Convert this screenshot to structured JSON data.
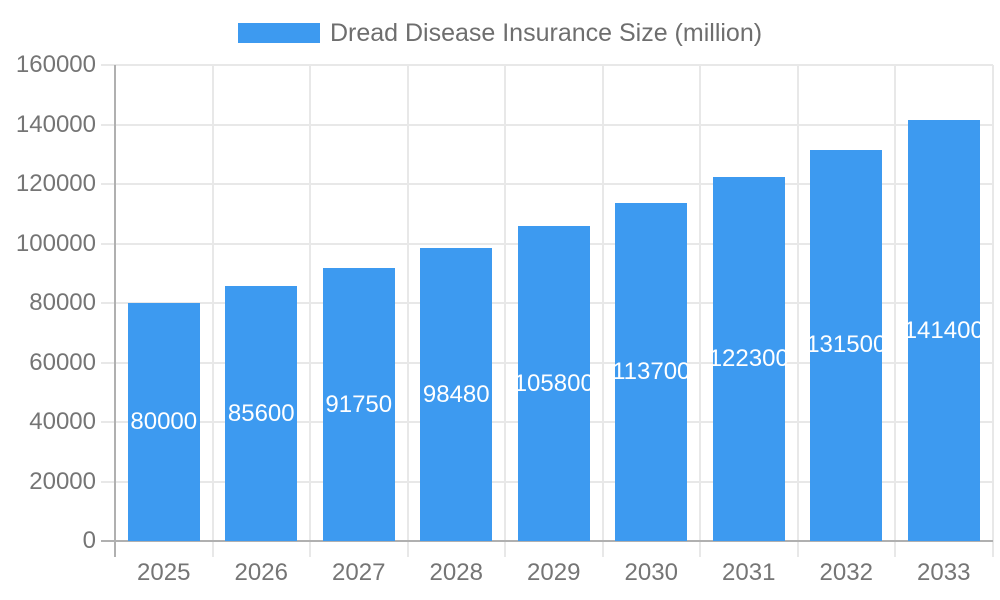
{
  "legend": {
    "label": "Dread Disease Insurance Size (million)"
  },
  "chart_data": {
    "type": "bar",
    "title": "Dread Disease Insurance Size (million)",
    "xlabel": "",
    "ylabel": "",
    "categories": [
      "2025",
      "2026",
      "2027",
      "2028",
      "2029",
      "2030",
      "2031",
      "2032",
      "2033"
    ],
    "series": [
      {
        "name": "Dread Disease Insurance Size (million)",
        "values": [
          80000,
          85600,
          91750,
          98480,
          105800,
          113700,
          122300,
          131500,
          141400
        ]
      }
    ],
    "bar_labels": [
      "80000",
      "85600",
      "91750",
      "98480",
      "105800",
      "113700",
      "122300",
      "131500",
      "141400"
    ],
    "ylim": [
      0,
      160000
    ],
    "ytick_step": 20000,
    "ytick_labels": [
      "0",
      "20000",
      "40000",
      "60000",
      "80000",
      "100000",
      "120000",
      "140000",
      "160000"
    ],
    "legend_position": "top",
    "grid": true,
    "colors": {
      "bar": "#3d9af0",
      "grid": "#e8e8e8",
      "axis": "#b0b0b0",
      "axis_text": "#757575",
      "legend_text": "#6e6e6e",
      "bar_label_text": "#ffffff",
      "background": "#ffffff"
    }
  }
}
